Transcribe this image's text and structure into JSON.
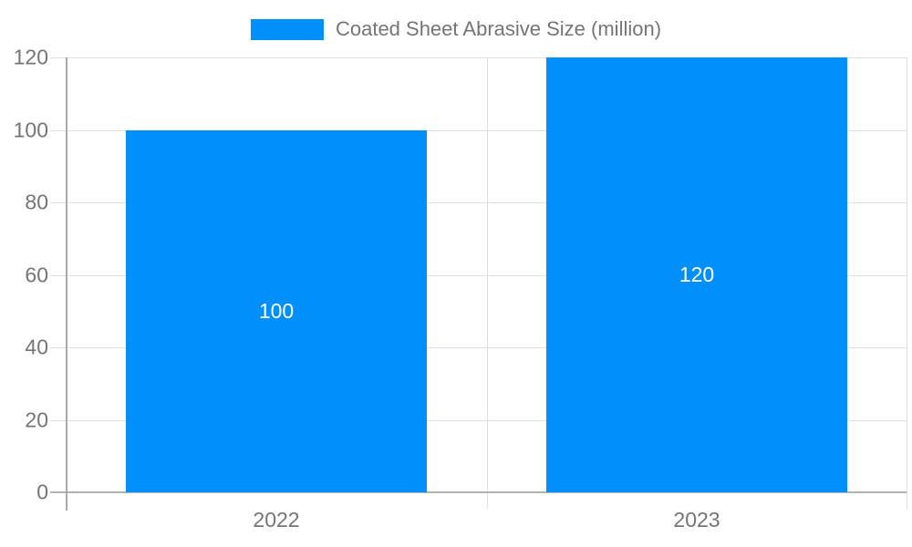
{
  "legend": {
    "label": "Coated Sheet Abrasive Size (million)"
  },
  "colors": {
    "bar": "#008FFB",
    "axis_text": "#757575",
    "grid_line": "#e0e0e0",
    "axis_line": "#aaaaaa",
    "data_label": "#ffffff",
    "background": "#ffffff"
  },
  "chart_data": {
    "type": "bar",
    "title": "",
    "xlabel": "",
    "ylabel": "",
    "categories": [
      "2022",
      "2023"
    ],
    "series": [
      {
        "name": "Coated Sheet Abrasive Size (million)",
        "values": [
          100,
          120
        ]
      }
    ],
    "data_labels": [
      "100",
      "120"
    ],
    "yticks": [
      0,
      20,
      40,
      60,
      80,
      100,
      120
    ],
    "ylim": [
      0,
      120
    ],
    "grid": "horizontal gridlines plus category-boundary vertical lines",
    "legend_position": "top-center"
  }
}
